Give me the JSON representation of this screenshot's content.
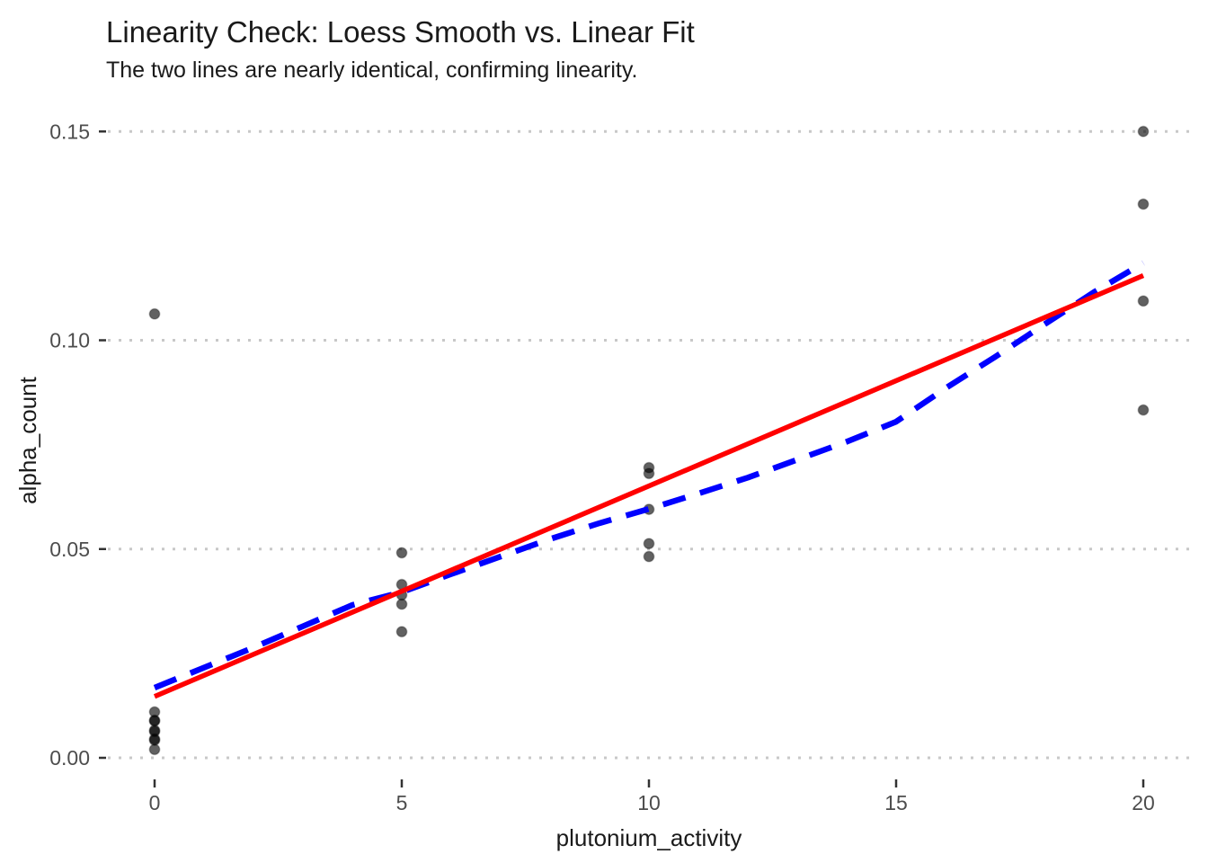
{
  "chart_data": {
    "type": "scatter",
    "title": "Linearity Check: Loess Smooth vs. Linear Fit",
    "subtitle": "The two lines are nearly identical, confirming linearity.",
    "xlabel": "plutonium_activity",
    "ylabel": "alpha_count",
    "xlim": [
      -0.95,
      20.98
    ],
    "ylim": [
      -0.005,
      0.157
    ],
    "x_ticks": [
      0,
      5,
      10,
      15,
      20
    ],
    "x_tick_labels": [
      "0",
      "5",
      "10",
      "15",
      "20"
    ],
    "y_ticks": [
      0,
      0.05,
      0.1,
      0.15
    ],
    "y_tick_labels": [
      "0.00",
      "0.05",
      "0.10",
      "0.15"
    ],
    "grid": "horizontal-dotted",
    "legend": "none",
    "colors": {
      "points": "#000000",
      "linear_fit": "#FF0000",
      "loess": "#0000FF",
      "gridlines": "#C8C8C8",
      "axis_ticks": "#333333",
      "tick_text": "#4D4D4D",
      "title_text": "#1A1A1A",
      "background": "#FFFFFF"
    },
    "point_opacity": 0.62,
    "point_radius": 5.7,
    "points": [
      [
        0,
        0.1063
      ],
      [
        0,
        0.011
      ],
      [
        0,
        0.009
      ],
      [
        0,
        0.0088
      ],
      [
        0,
        0.0066
      ],
      [
        0,
        0.0063
      ],
      [
        0,
        0.0045
      ],
      [
        0,
        0.0042
      ],
      [
        0,
        0.002
      ],
      [
        5,
        0.0491
      ],
      [
        5,
        0.0415
      ],
      [
        5,
        0.039
      ],
      [
        5,
        0.0368
      ],
      [
        5,
        0.0302
      ],
      [
        10,
        0.0695
      ],
      [
        10,
        0.0681
      ],
      [
        10,
        0.0595
      ],
      [
        10,
        0.0513
      ],
      [
        10,
        0.0482
      ],
      [
        20,
        0.15
      ],
      [
        20,
        0.1326
      ],
      [
        20,
        0.1094
      ],
      [
        20,
        0.0833
      ]
    ],
    "series": [
      {
        "name": "loess_smooth",
        "label": "Loess Smooth",
        "style": "dashed",
        "color_key": "loess",
        "stroke_width": 6.5,
        "points": [
          [
            0,
            0.0168
          ],
          [
            1,
            0.0216
          ],
          [
            2,
            0.0264
          ],
          [
            3,
            0.0315
          ],
          [
            4,
            0.0366
          ],
          [
            5,
            0.0397
          ],
          [
            6,
            0.044
          ],
          [
            7,
            0.0482
          ],
          [
            8,
            0.0524
          ],
          [
            9,
            0.0562
          ],
          [
            10,
            0.0596
          ],
          [
            11,
            0.0633
          ],
          [
            12,
            0.0671
          ],
          [
            13,
            0.0714
          ],
          [
            14,
            0.0757
          ],
          [
            15,
            0.0805
          ],
          [
            16,
            0.0885
          ],
          [
            17,
            0.096
          ],
          [
            18,
            0.1038
          ],
          [
            19,
            0.1115
          ],
          [
            20,
            0.1185
          ]
        ]
      },
      {
        "name": "linear_fit",
        "label": "Linear Fit",
        "style": "solid",
        "color_key": "linear_fit",
        "stroke_width": 5.5,
        "points": [
          [
            0,
            0.0147
          ],
          [
            20,
            0.1155
          ]
        ]
      }
    ]
  }
}
